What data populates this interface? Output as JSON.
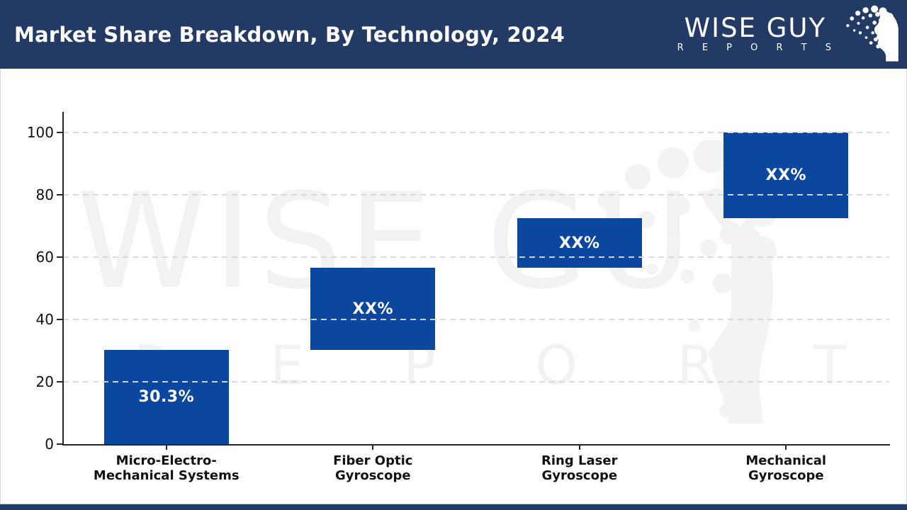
{
  "header": {
    "title": "Market Share Breakdown, By Technology, 2024",
    "logo": {
      "line1": "WISE GUY",
      "line2": "R E P O R T S"
    }
  },
  "watermark": {
    "line1": "WISE GUY",
    "line2": "R E P O R T S"
  },
  "chart_data": {
    "type": "bar",
    "subtype": "waterfall",
    "title": "Market Share Breakdown, By Technology, 2024",
    "xlabel": "",
    "ylabel": "",
    "ylim": [
      0,
      100
    ],
    "yticks": [
      0,
      20,
      40,
      60,
      80,
      100
    ],
    "grid": "horizontal-dashed",
    "legend": "none",
    "categories": [
      [
        "Micro-Electro-",
        "Mechanical Systems"
      ],
      [
        "Fiber Optic",
        "Gyroscope"
      ],
      [
        "Ring Laser",
        "Gyroscope"
      ],
      [
        "Mechanical",
        "Gyroscope"
      ]
    ],
    "segments": [
      {
        "category": "Micro-Electro-Mechanical Systems",
        "start": 0,
        "end": 30.3,
        "value_label": "30.3%"
      },
      {
        "category": "Fiber Optic Gyroscope",
        "start": 30.3,
        "end": 56.5,
        "value_label": "XX%"
      },
      {
        "category": "Ring Laser Gyroscope",
        "start": 56.5,
        "end": 72.4,
        "value_label": "XX%"
      },
      {
        "category": "Mechanical Gyroscope",
        "start": 72.4,
        "end": 100,
        "value_label": "XX%"
      }
    ]
  },
  "colors": {
    "brand_navy": "#223A64",
    "bar_blue": "#0B479F",
    "gridline": "#D8D8D8",
    "axis": "#262626",
    "text_dark": "#111111",
    "watermark_gray": "#F2F2F2",
    "background": "#FFFFFF"
  }
}
